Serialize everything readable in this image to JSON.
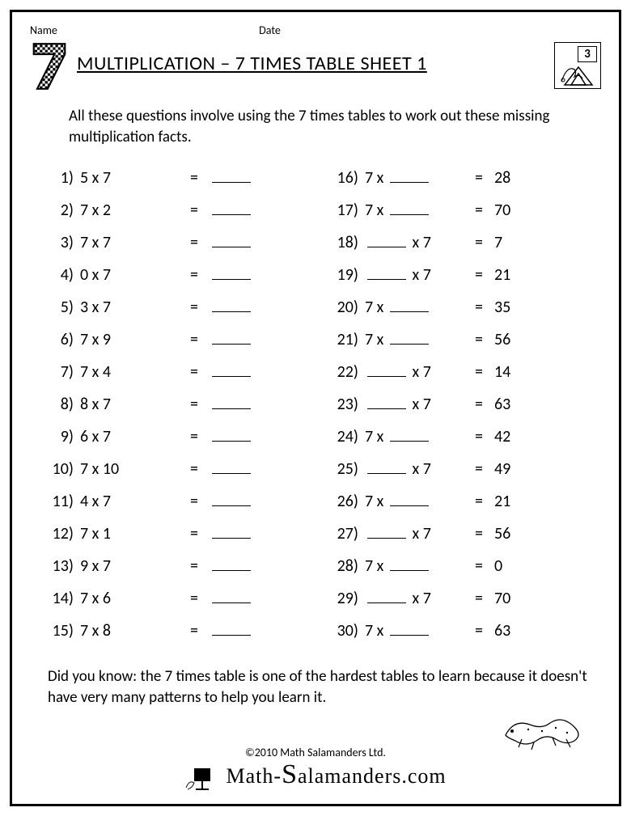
{
  "meta": {
    "name_label": "Name",
    "date_label": "Date"
  },
  "header": {
    "title": "MULTIPLICATION – 7 TIMES TABLE SHEET 1",
    "grade_number": "3"
  },
  "intro": "All these questions involve using the 7 times tables to work out these missing multiplication facts.",
  "colors": {
    "text": "#000000",
    "background": "#ffffff",
    "border": "#000000"
  },
  "typography": {
    "body_fontsize_pt": 15,
    "title_fontsize_pt": 18,
    "font_family": "Calibri"
  },
  "blank_token": "____",
  "left_problems": [
    {
      "n": "1)",
      "expr": "5 x 7",
      "ans": "____"
    },
    {
      "n": "2)",
      "expr": "7 x 2",
      "ans": "____"
    },
    {
      "n": "3)",
      "expr": "7 x 7",
      "ans": "____"
    },
    {
      "n": "4)",
      "expr": "0 x 7",
      "ans": "____"
    },
    {
      "n": "5)",
      "expr": "3 x 7",
      "ans": "____"
    },
    {
      "n": "6)",
      "expr": "7 x 9",
      "ans": "____"
    },
    {
      "n": "7)",
      "expr": "7 x 4",
      "ans": "____"
    },
    {
      "n": "8)",
      "expr": "8 x 7",
      "ans": "____"
    },
    {
      "n": "9)",
      "expr": "6 x 7",
      "ans": "____"
    },
    {
      "n": "10)",
      "expr": "7 x 10",
      "ans": "____"
    },
    {
      "n": "11)",
      "expr": "4 x 7",
      "ans": "____"
    },
    {
      "n": "12)",
      "expr": "7 x 1",
      "ans": "____"
    },
    {
      "n": "13)",
      "expr": "9 x 7",
      "ans": "____"
    },
    {
      "n": "14)",
      "expr": "7 x 6",
      "ans": "____"
    },
    {
      "n": "15)",
      "expr": "7 x 8",
      "ans": "____"
    }
  ],
  "right_problems": [
    {
      "n": "16)",
      "expr": "7 x ____",
      "ans": "28"
    },
    {
      "n": "17)",
      "expr": "7 x ____",
      "ans": "70"
    },
    {
      "n": "18)",
      "expr": "____ x 7",
      "ans": "7"
    },
    {
      "n": "19)",
      "expr": "____ x 7",
      "ans": "21"
    },
    {
      "n": "20)",
      "expr": "7 x ____",
      "ans": "35"
    },
    {
      "n": "21)",
      "expr": "7 x ____",
      "ans": "56"
    },
    {
      "n": "22)",
      "expr": "____ x 7",
      "ans": "14"
    },
    {
      "n": "23)",
      "expr": "____ x 7",
      "ans": "63"
    },
    {
      "n": "24)",
      "expr": "7 x ____",
      "ans": "42"
    },
    {
      "n": "25)",
      "expr": "____ x 7",
      "ans": "49"
    },
    {
      "n": "26)",
      "expr": "7 x ____",
      "ans": "21"
    },
    {
      "n": "27)",
      "expr": "____ x 7",
      "ans": "56"
    },
    {
      "n": "28)",
      "expr": "7 x ____",
      "ans": "0"
    },
    {
      "n": "29)",
      "expr": "____ x 7",
      "ans": "70"
    },
    {
      "n": "30)",
      "expr": "7 x ____",
      "ans": "63"
    }
  ],
  "factoid": "Did you know: the 7 times table is one of the hardest tables to learn because it doesn't have very many patterns to help you learn it.",
  "footer": {
    "copyright": "©2010 Math Salamanders Ltd.",
    "brand_left": "Math-",
    "brand_right": "alamanders.com"
  }
}
